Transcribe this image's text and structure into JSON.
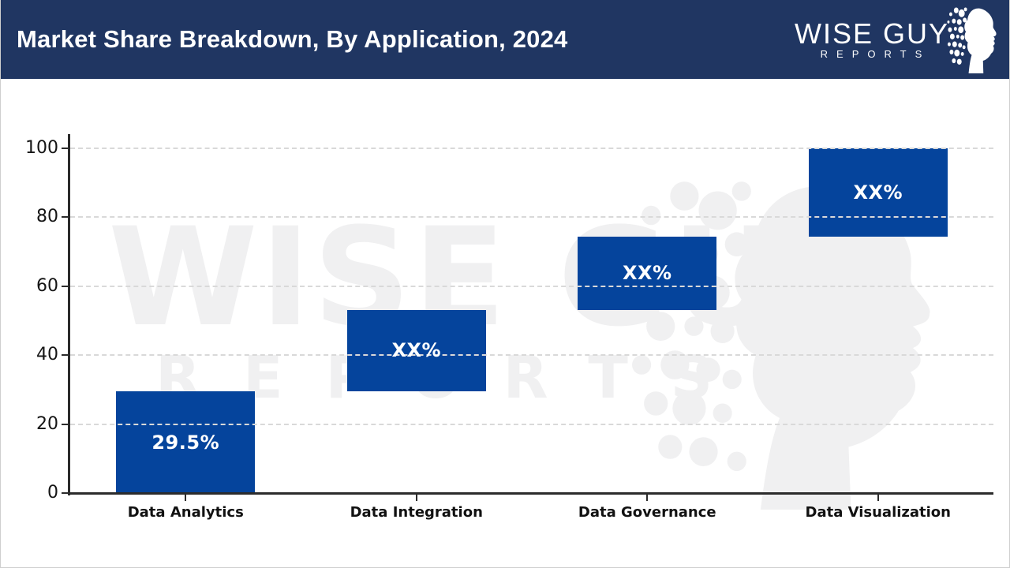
{
  "header": {
    "title": "Market Share Breakdown, By Application, 2024",
    "bg_color": "#203662",
    "logo": {
      "wordmark": "WISE GUY",
      "subtitle": "REPORTS"
    }
  },
  "watermark": {
    "wordmark": "WISE GUY",
    "subtitle": "REPORTS"
  },
  "chart_data": {
    "type": "bar",
    "subtype": "floating-segment-waterfall",
    "title": "Market Share Breakdown, By Application, 2024",
    "categories": [
      "Data Analytics",
      "Data Integration",
      "Data Governance",
      "Data Visualization"
    ],
    "series": [
      {
        "name": "Market share segment",
        "segments": [
          [
            0,
            29.5
          ],
          [
            29.5,
            53.2
          ],
          [
            53.2,
            74.3
          ],
          [
            74.3,
            100
          ]
        ]
      }
    ],
    "bar_labels": [
      "29.5%",
      "XX%",
      "XX%",
      "XX%"
    ],
    "xlabel": "",
    "ylabel": "",
    "yticks": [
      0,
      20,
      40,
      60,
      80,
      100
    ],
    "ylim": [
      0,
      100
    ],
    "grid": "horizontal-dashed",
    "legend": "none",
    "bar_color": "#05449c",
    "grid_color": "#d9d9d9",
    "axis_color": "#2b2b2b",
    "bar_label_color": "#ffffff"
  }
}
